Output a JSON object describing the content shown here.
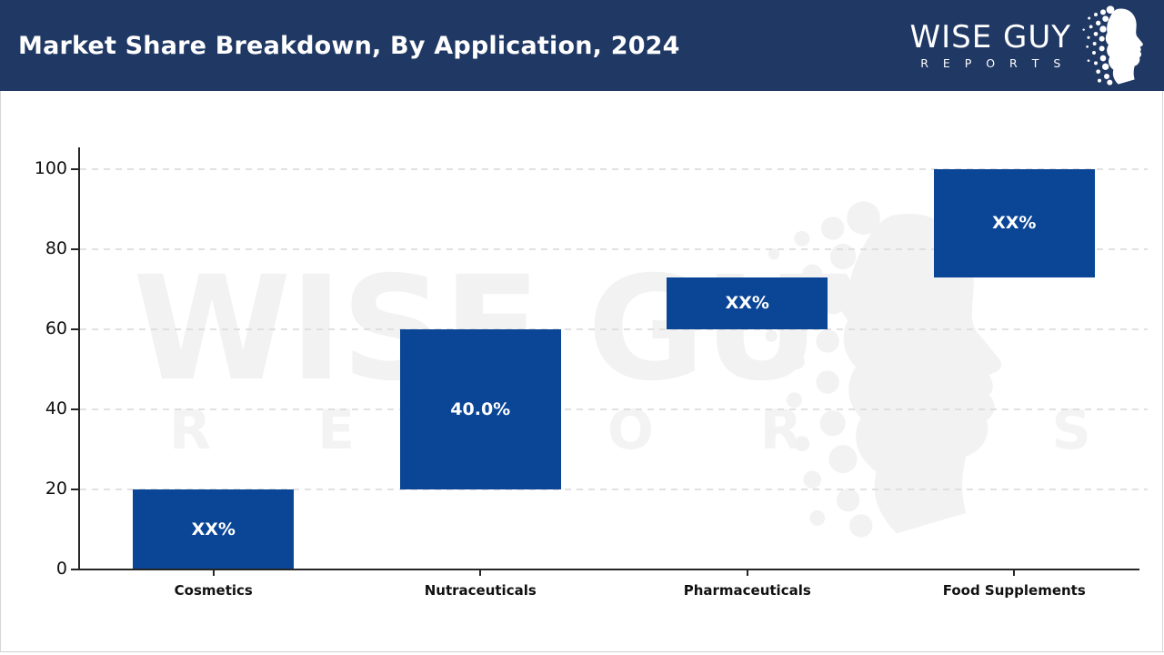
{
  "header": {
    "title": "Market Share Breakdown, By Application, 2024",
    "bg_color": "#203864",
    "logo": {
      "name": "WISE GUY",
      "tagline": "R E P O R T S"
    }
  },
  "watermark": {
    "line1": "WISE GUY",
    "line2": "R E P O R T S"
  },
  "icons": {
    "logo_face": "dotted-head-profile",
    "watermark_face": "dotted-head-profile"
  },
  "chart_data": {
    "type": "bar",
    "variant": "waterfall",
    "title": "Market Share Breakdown, By Application, 2024",
    "categories": [
      "Cosmetics",
      "Nutraceuticals",
      "Pharmaceuticals",
      "Food Supplements"
    ],
    "series": [
      {
        "name": "Market Share (%)",
        "segments": [
          {
            "category": "Cosmetics",
            "start": 0,
            "end": 20,
            "label": "XX%"
          },
          {
            "category": "Nutraceuticals",
            "start": 20,
            "end": 60,
            "label": "40.0%"
          },
          {
            "category": "Pharmaceuticals",
            "start": 60,
            "end": 73,
            "label": "XX%"
          },
          {
            "category": "Food Supplements",
            "start": 73,
            "end": 100,
            "label": "XX%"
          }
        ]
      }
    ],
    "yticks": [
      0,
      20,
      40,
      60,
      80,
      100
    ],
    "ylim": [
      0,
      104
    ],
    "xlabel": "",
    "ylabel": "",
    "grid": "horizontal-dashed",
    "legend": "none",
    "colors": {
      "bar": "#0a4596",
      "bar_label": "#ffffff",
      "header_bg": "#203864",
      "grid": "#dcdcdc",
      "axis": "#262626",
      "tick_label": "#111111"
    }
  }
}
